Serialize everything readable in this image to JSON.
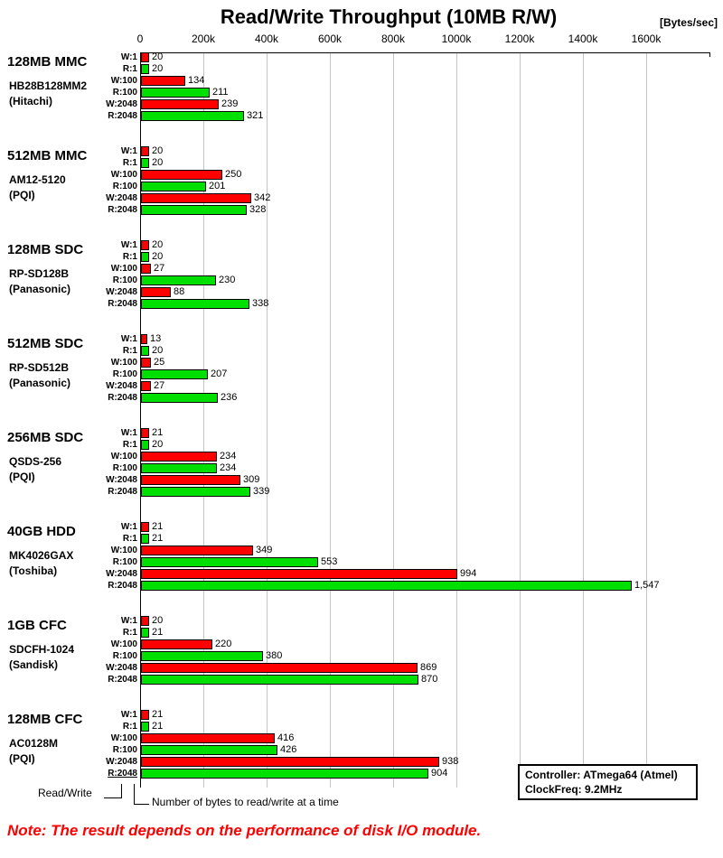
{
  "chart_data": {
    "type": "bar",
    "orientation": "horizontal",
    "title": "Read/Write Throughput (10MB R/W)",
    "unit_label": "[Bytes/sec]",
    "axis": {
      "ticks": [
        "0",
        "200k",
        "400k",
        "600k",
        "800k",
        "1000k",
        "1200k",
        "1400k",
        "1600k"
      ],
      "tick_values_k": [
        0,
        200,
        400,
        600,
        800,
        1000,
        1200,
        1400,
        1600
      ],
      "grid": true,
      "position": "top"
    },
    "row_labels": [
      "W:1",
      "R:1",
      "W:100",
      "R:100",
      "W:2048",
      "R:2048"
    ],
    "colors": {
      "write": "#ff0000",
      "read": "#00e000",
      "grid": "#c4c4c4"
    },
    "groups": [
      {
        "name": "128MB MMC",
        "model": "HB28B128MM2",
        "maker": "(Hitachi)",
        "values": [
          20,
          20,
          134,
          211,
          239,
          321
        ]
      },
      {
        "name": "512MB MMC",
        "model": "AM12-5120",
        "maker": "(PQI)",
        "values": [
          20,
          20,
          250,
          201,
          342,
          328
        ]
      },
      {
        "name": "128MB SDC",
        "model": "RP-SD128B",
        "maker": "(Panasonic)",
        "values": [
          20,
          20,
          27,
          230,
          88,
          338
        ]
      },
      {
        "name": "512MB SDC",
        "model": "RP-SD512B",
        "maker": "(Panasonic)",
        "values": [
          13,
          20,
          25,
          207,
          27,
          236
        ]
      },
      {
        "name": "256MB SDC",
        "model": "QSDS-256",
        "maker": "(PQI)",
        "values": [
          21,
          20,
          234,
          234,
          309,
          339
        ]
      },
      {
        "name": "40GB HDD",
        "model": "MK4026GAX",
        "maker": "(Toshiba)",
        "values": [
          21,
          21,
          349,
          553,
          994,
          1547
        ]
      },
      {
        "name": "1GB CFC",
        "model": "SDCFH-1024",
        "maker": "(Sandisk)",
        "values": [
          20,
          21,
          220,
          380,
          869,
          870
        ]
      },
      {
        "name": "128MB CFC",
        "model": "AC0128M",
        "maker": "(PQI)",
        "values": [
          21,
          21,
          416,
          426,
          938,
          904
        ]
      }
    ]
  },
  "legend": {
    "read_write": "Read/Write",
    "bytes_at_a_time": "Number of bytes to read/write at a time"
  },
  "info_box": {
    "line1": "Controller: ATmega64 (Atmel)",
    "line2": "ClockFreq: 9.2MHz"
  },
  "note": "Note: The result depends on the performance of disk I/O module."
}
